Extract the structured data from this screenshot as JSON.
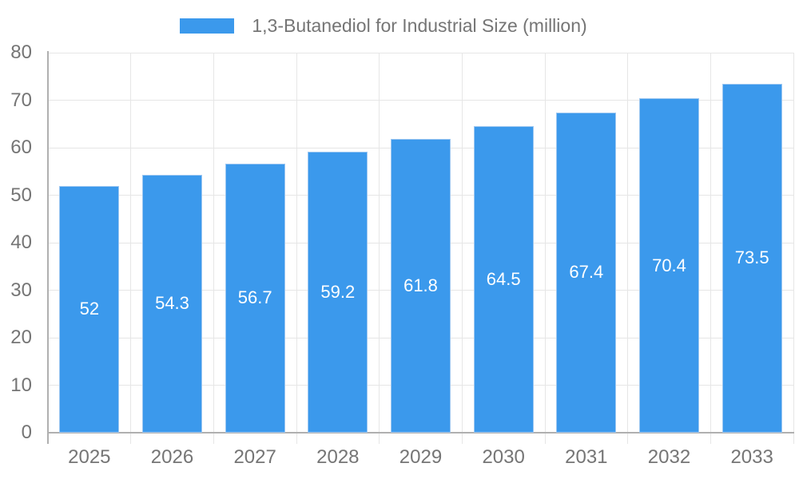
{
  "legend": {
    "label": "1,3-Butanediol for Industrial Size (million)"
  },
  "chart_data": {
    "type": "bar",
    "title": "1,3-Butanediol for Industrial Size (million)",
    "categories": [
      "2025",
      "2026",
      "2027",
      "2028",
      "2029",
      "2030",
      "2031",
      "2032",
      "2033"
    ],
    "series": [
      {
        "name": "1,3-Butanediol for Industrial Size (million)",
        "values": [
          52,
          54.3,
          56.7,
          59.2,
          61.8,
          64.5,
          67.4,
          70.4,
          73.5
        ]
      }
    ],
    "annotations": [
      "52",
      "54.3",
      "56.7",
      "59.2",
      "61.8",
      "64.5",
      "67.4",
      "70.4",
      "73.5"
    ],
    "xlabel": "",
    "ylabel": "",
    "ylim": [
      0,
      80
    ],
    "yticks": [
      0,
      10,
      20,
      30,
      40,
      50,
      60,
      70,
      80
    ],
    "grid": true,
    "legend_position": "top"
  },
  "colors": {
    "bar": "#3B99EC",
    "bar_stroke": "#9DC7F1",
    "gridline": "#E6E6E6",
    "axis_line": "#B0B0B0",
    "axis_text": "#757575",
    "annotation_text": "#FFFFFF",
    "background": "#FFFFFF"
  }
}
